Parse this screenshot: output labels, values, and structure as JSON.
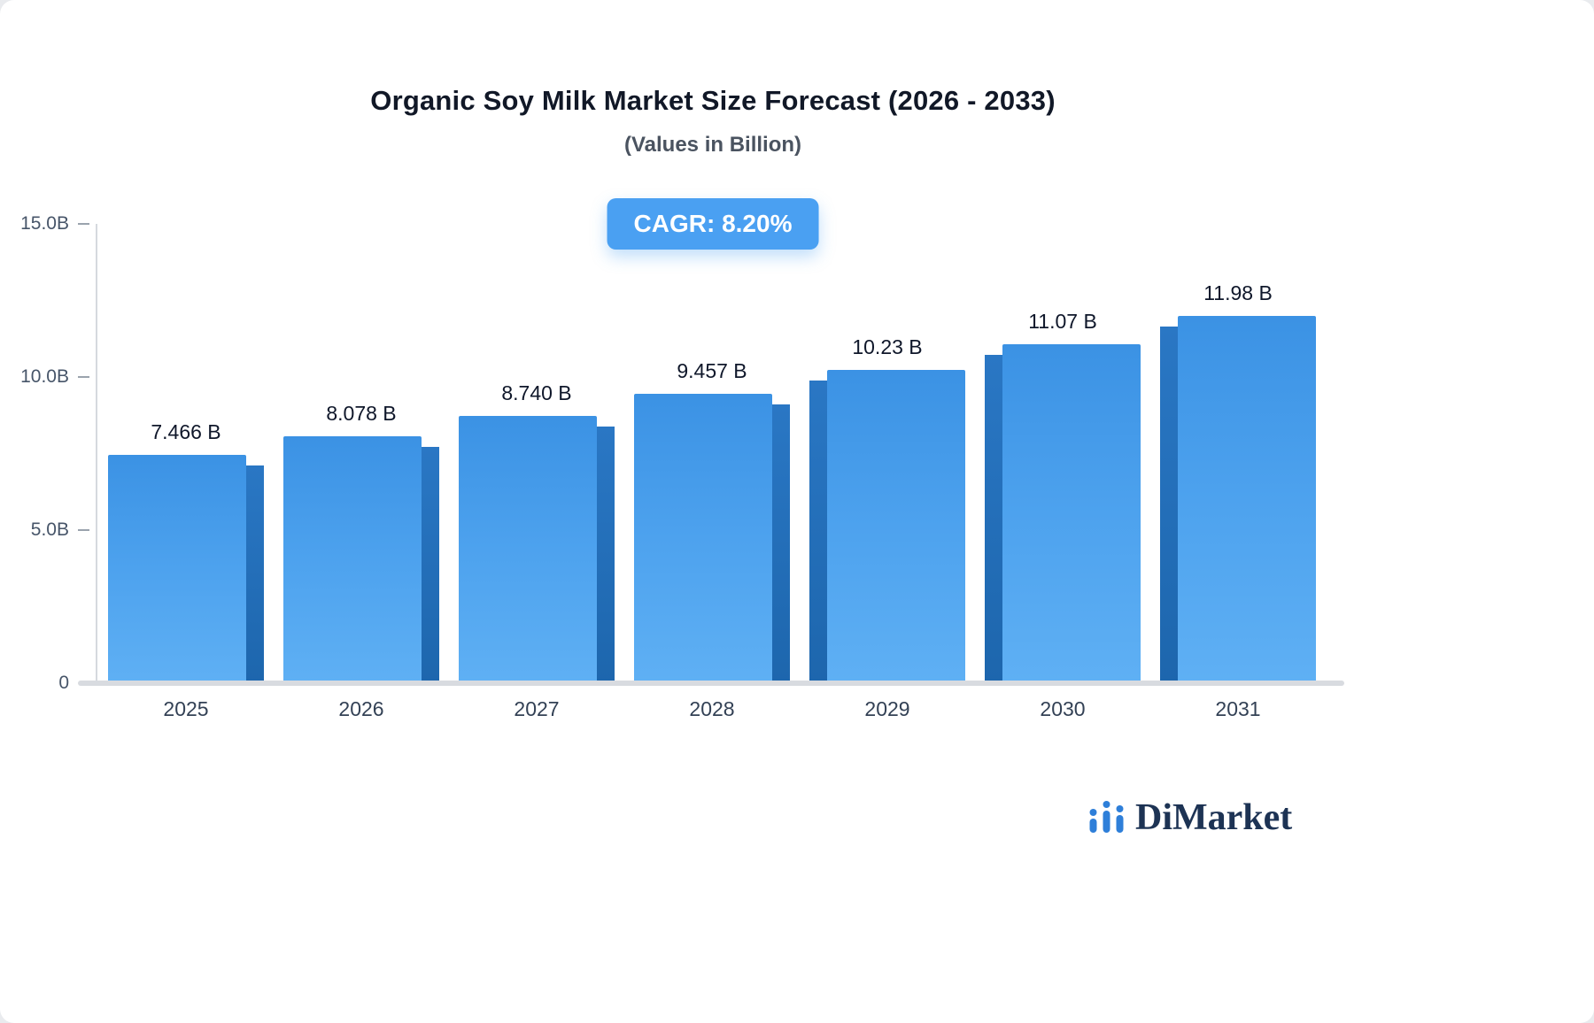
{
  "title": "Organic Soy Milk Market Size Forecast (2026 - 2033)",
  "subtitle": "(Values in Billion)",
  "cagr_label": "CAGR: 8.20%",
  "logo": {
    "text": "DiMarket"
  },
  "chart_data": {
    "type": "bar",
    "title": "Organic Soy Milk Market Size Forecast (2026 - 2033)",
    "subtitle": "(Values in Billion)",
    "categories": [
      "2025",
      "2026",
      "2027",
      "2028",
      "2029",
      "2030",
      "2031"
    ],
    "values": [
      7.466,
      8.078,
      8.74,
      9.457,
      10.23,
      11.07,
      11.98
    ],
    "value_labels": [
      "7.466 B",
      "8.078 B",
      "8.740 B",
      "9.457 B",
      "10.23 B",
      "11.07 B",
      "11.98 B"
    ],
    "xlabel": "",
    "ylabel": "",
    "ylim": [
      0,
      15
    ],
    "yticks": [
      {
        "label": "15.0B",
        "value": 15
      },
      {
        "label": "10.0B",
        "value": 10
      },
      {
        "label": "5.0B",
        "value": 5
      },
      {
        "label": "0",
        "value": 0
      }
    ],
    "grid": false,
    "legend_position": "none",
    "annotation": "CAGR: 8.20%",
    "colors": {
      "bar_top": "#3b92e4",
      "bar_bottom": "#5fb0f4",
      "bar_side": "#1d66ad",
      "badge": "#4aa0f2",
      "axis": "#d5d9de"
    }
  }
}
